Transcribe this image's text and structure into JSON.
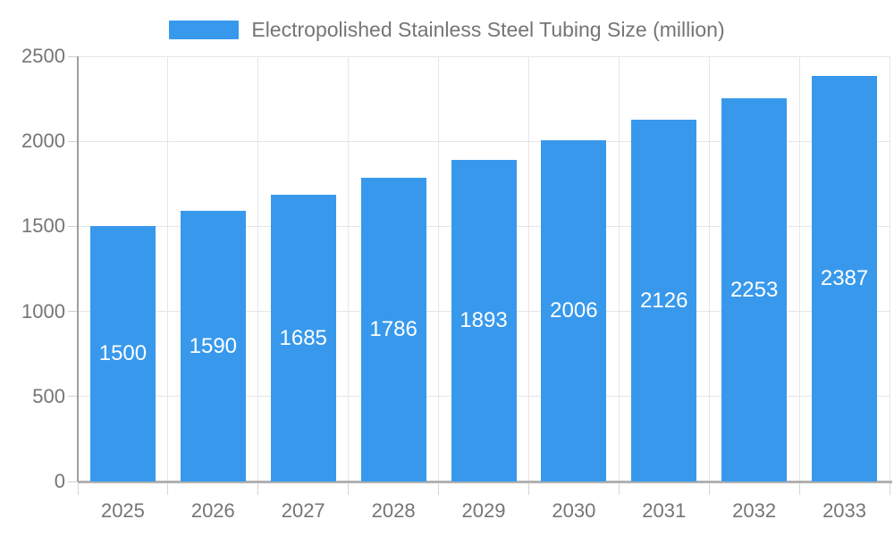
{
  "legend": {
    "label": "Electropolished Stainless Steel Tubing Size (million)"
  },
  "chart_data": {
    "type": "bar",
    "title": "Electropolished Stainless Steel Tubing Size (million)",
    "categories": [
      "2025",
      "2026",
      "2027",
      "2028",
      "2029",
      "2030",
      "2031",
      "2032",
      "2033"
    ],
    "values": [
      1500,
      1590,
      1685,
      1786,
      1893,
      2006,
      2126,
      2253,
      2387
    ],
    "xlabel": "",
    "ylabel": "",
    "ylim": [
      0,
      2500
    ],
    "yticks": [
      0,
      500,
      1000,
      1500,
      2000,
      2500
    ],
    "grid": true,
    "legend_position": "top",
    "value_labels": "inside-center",
    "colors": {
      "bar": "#3899EC",
      "value_label": "#ffffff",
      "axis_text": "#757575",
      "gridline": "#e6e6e6",
      "axis_line": "#b1b1b1"
    }
  }
}
